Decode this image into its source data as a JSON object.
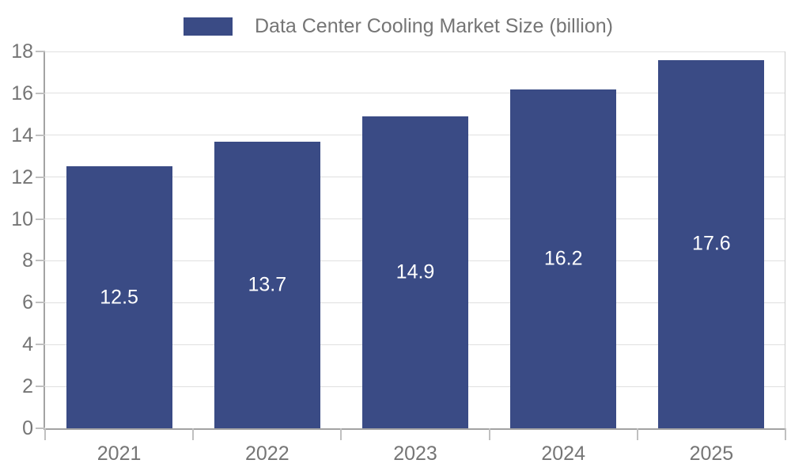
{
  "chart_data": {
    "type": "bar",
    "title": "",
    "legend_label": "Data Center Cooling Market Size (billion)",
    "legend_position": "top-center",
    "categories": [
      "2021",
      "2022",
      "2023",
      "2024",
      "2025"
    ],
    "series": [
      {
        "name": "Data Center Cooling Market Size (billion)",
        "values": [
          12.5,
          13.7,
          14.9,
          16.2,
          17.6
        ]
      }
    ],
    "bar_value_labels": [
      "12.5",
      "13.7",
      "14.9",
      "16.2",
      "17.6"
    ],
    "xlabel": "",
    "ylabel": "",
    "ylim": [
      0,
      18
    ],
    "yticks": [
      0,
      2,
      4,
      6,
      8,
      10,
      12,
      14,
      16,
      18
    ],
    "grid": true,
    "legend_visible": true
  },
  "style": {
    "bar_color": "#3a4b85",
    "value_label_color": "#ffffff",
    "tick_label_color": "#757575",
    "legend_text_color": "#757575",
    "gridline_color": "#e0e0e0",
    "axis_spine_color": "#a3a3a3",
    "right_spine_color": "#cccccc",
    "tick_mark_color": "#c0c0c0",
    "background_color": "#ffffff"
  }
}
